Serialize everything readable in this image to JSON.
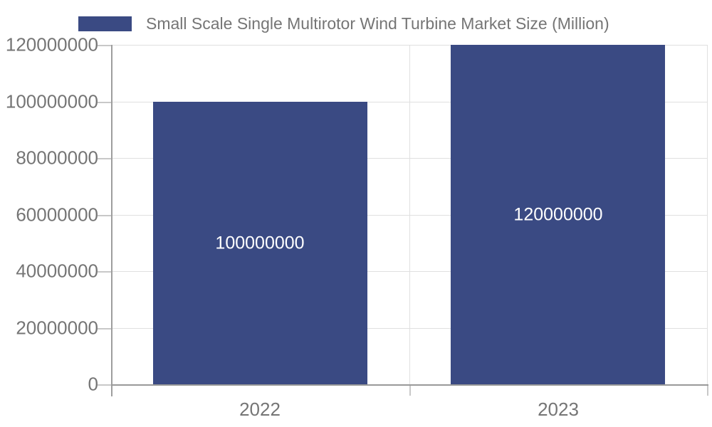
{
  "chart_data": {
    "type": "bar",
    "title": "Small Scale Single Multirotor Wind Turbine Market Size (Million)",
    "categories": [
      "2022",
      "2023"
    ],
    "series": [
      {
        "name": "Small Scale Single Multirotor Wind Turbine Market Size (Million)",
        "values": [
          100000000,
          120000000
        ]
      }
    ],
    "bar_value_labels": [
      "100000000",
      "120000000"
    ],
    "xlabel": "",
    "ylabel": "",
    "ylim": [
      0,
      120000000
    ],
    "yticks": [
      0,
      20000000,
      40000000,
      60000000,
      80000000,
      100000000,
      120000000
    ],
    "ytick_labels": [
      "0",
      "20000000",
      "40000000",
      "60000000",
      "80000000",
      "100000000",
      "120000000"
    ],
    "grid": true,
    "legend_position": "top",
    "colors": {
      "bar": "#3A4A83",
      "value_label": "#FFFFFF",
      "axis_text": "#757575",
      "grid_line": "#E0E0E0",
      "axis_line": "#999999",
      "background": "#FFFFFF"
    }
  }
}
